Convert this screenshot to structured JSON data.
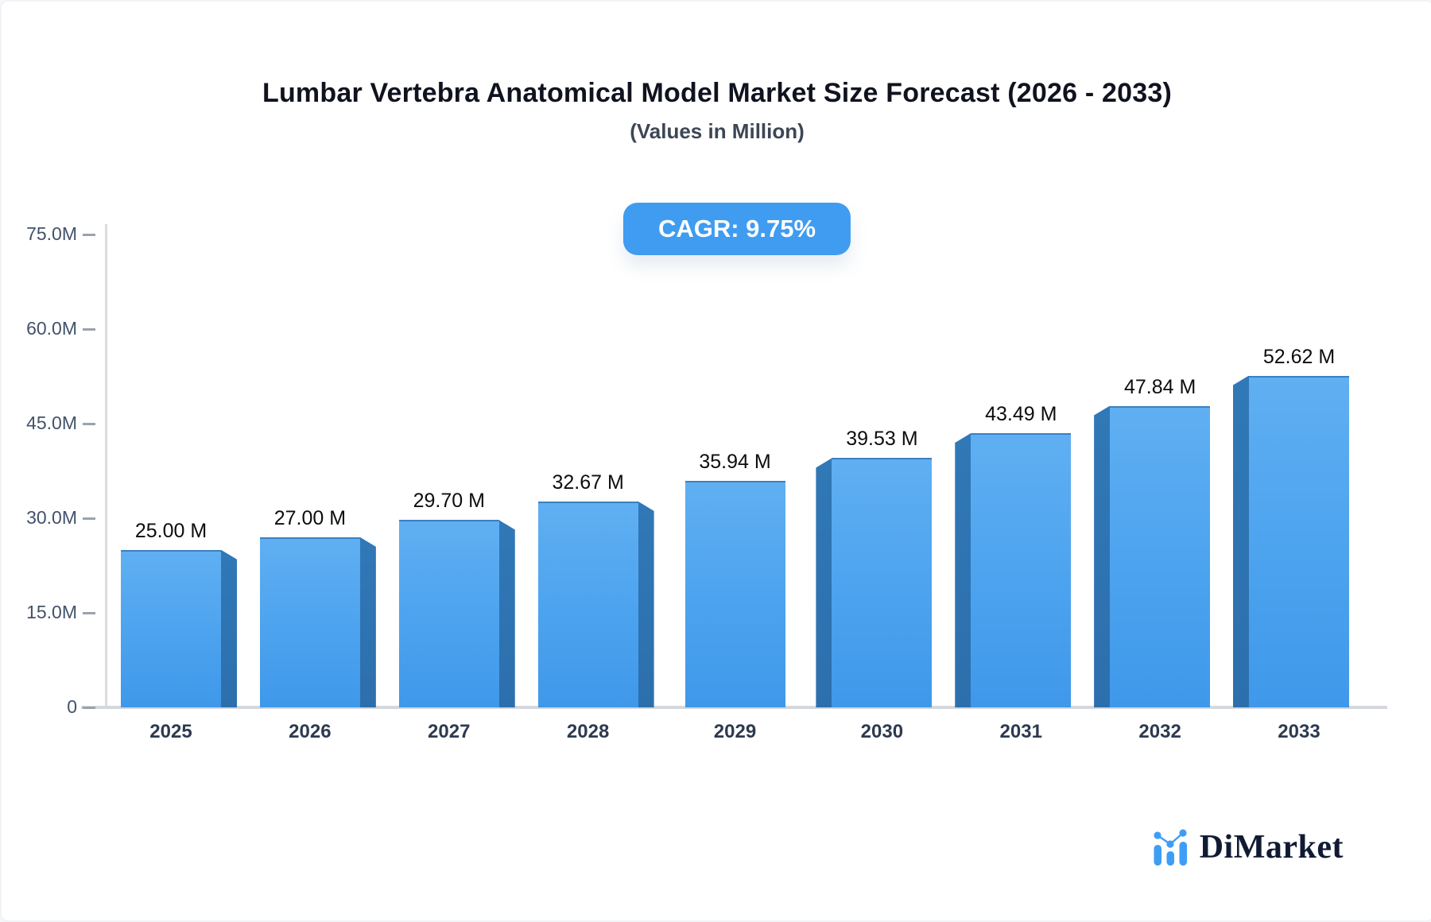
{
  "header": {
    "title": "Lumbar Vertebra Anatomical Model Market Size Forecast (2026 - 2033)",
    "subtitle": "(Values in Million)"
  },
  "badge": {
    "label": "CAGR: 9.75%"
  },
  "logo": {
    "text": "DiMarket",
    "icon": "mini-bar-chart-icon"
  },
  "colors": {
    "accent": "#3F9CF0",
    "bar_front_top": "#60AFF2",
    "bar_front_bottom": "#3F98EA",
    "bar_side": "#2E74B2",
    "axis_line": "#d5d8dd",
    "tick": "#9aa2af",
    "y_label_text": "#42526b",
    "x_label_text": "#2d3a50",
    "value_label_text": "#0c0d0f",
    "title_text": "#10131f"
  },
  "chart_data": {
    "type": "bar",
    "title": "Lumbar Vertebra Anatomical Model Market Size Forecast (2026 - 2033)",
    "subtitle": "(Values in Million)",
    "unit": "Million",
    "categories": [
      "2025",
      "2026",
      "2027",
      "2028",
      "2029",
      "2030",
      "2031",
      "2032",
      "2033"
    ],
    "values": [
      25.0,
      27.0,
      29.7,
      32.67,
      35.94,
      39.53,
      43.49,
      47.84,
      52.62
    ],
    "value_labels": [
      "25.00 M",
      "27.00 M",
      "29.70 M",
      "32.67 M",
      "35.94 M",
      "39.53 M",
      "43.49 M",
      "47.84 M",
      "52.62 M"
    ],
    "y_ticks": [
      {
        "label": "75.0M",
        "value": 75
      },
      {
        "label": "60.0M",
        "value": 60
      },
      {
        "label": "45.0M",
        "value": 45
      },
      {
        "label": "30.0M",
        "value": 30
      },
      {
        "label": "15.0M",
        "value": 15
      },
      {
        "label": "0",
        "value": 0
      }
    ],
    "ylim": [
      0,
      75
    ],
    "xlabel": "",
    "ylabel": "",
    "grid": false,
    "legend": "none",
    "style": "pseudo-3d-bars, extrusion faces point away from center"
  }
}
